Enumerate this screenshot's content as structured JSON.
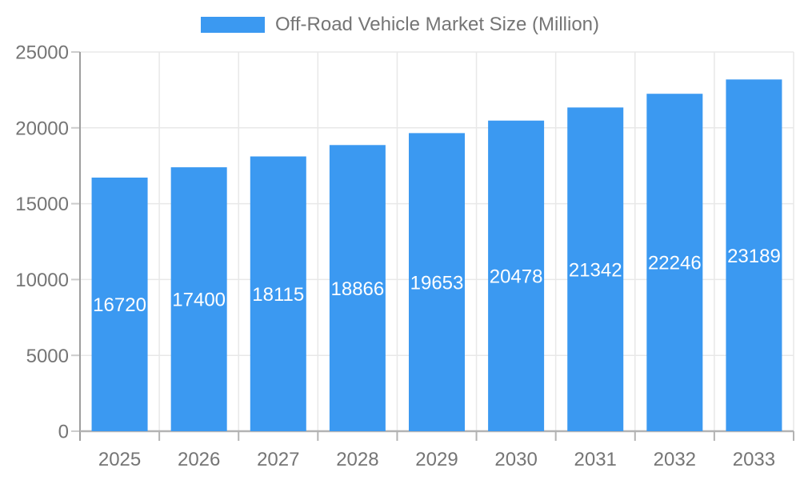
{
  "chart_data": {
    "type": "bar",
    "title": "Off-Road Vehicle Market Size (Million)",
    "legend_position": "top",
    "categories": [
      "2025",
      "2026",
      "2027",
      "2028",
      "2029",
      "2030",
      "2031",
      "2032",
      "2033"
    ],
    "series": [
      {
        "name": "Off-Road Vehicle Market Size (Million)",
        "values": [
          16720,
          17400,
          18115,
          18866,
          19653,
          20478,
          21342,
          22246,
          23189
        ]
      }
    ],
    "xlabel": "",
    "ylabel": "",
    "ylim": [
      0,
      25000
    ],
    "y_ticks": [
      0,
      5000,
      10000,
      15000,
      20000,
      25000
    ],
    "grid": true,
    "bar_value_labels": true,
    "colors": {
      "bar": "#3b99f1",
      "bar_label_text": "#ffffff",
      "axis_text": "#757575",
      "legend_text": "#757575",
      "grid_line": "#e8e8e8",
      "x_axis_line": "#b3b3b3",
      "y_axis_line": "#9e9e9e",
      "y_tick_mark": "#cccccc",
      "x_tick_mark": "#b3b3b3",
      "background": "#ffffff"
    }
  }
}
